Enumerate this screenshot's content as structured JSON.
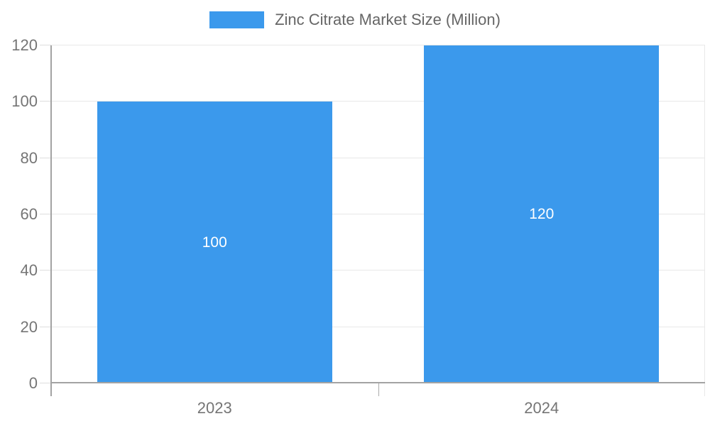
{
  "chart_data": {
    "type": "bar",
    "title": "Zinc Citrate Market Size (Million)",
    "categories": [
      "2023",
      "2024"
    ],
    "series": [
      {
        "name": "Zinc Citrate Market Size (Million)",
        "values": [
          100,
          120
        ]
      }
    ],
    "bar_value_labels": [
      "100",
      "120"
    ],
    "xlabel": "",
    "ylabel": "",
    "ylim": [
      0,
      120
    ],
    "yticks": [
      0,
      20,
      40,
      60,
      80,
      100,
      120
    ],
    "grid": true,
    "legend_position": "top-center",
    "colors": {
      "bar": "#3b99ec",
      "axis_line": "#a3a3a3",
      "gridline": "#e8e8e8",
      "tick_mark": "#dddddd",
      "boundary_tick": "#ababab",
      "axis_label": "#757575",
      "legend_text": "#666666",
      "bar_label_text": "#ffffff",
      "background": "#ffffff"
    }
  }
}
